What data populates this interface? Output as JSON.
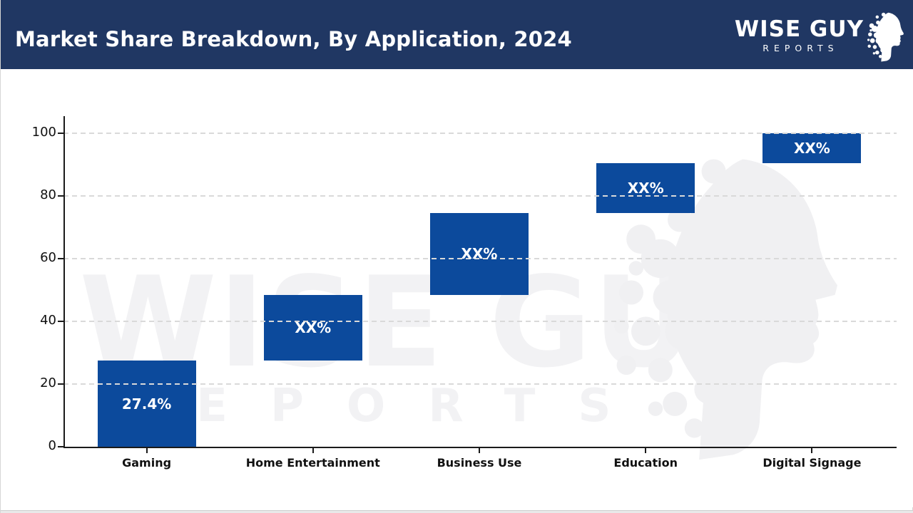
{
  "header": {
    "title": "Market Share Breakdown, By Application, 2024",
    "logo": {
      "line1": "WISE GUY",
      "line2": "REPORTS"
    }
  },
  "watermark": {
    "line1": "WISE GUY",
    "line2": "REPORTS"
  },
  "colors": {
    "header_bg": "#203763",
    "bar": "#0c4a9c",
    "grid": "#d9d9d9",
    "axis": "#1a1a1a",
    "watermark": "#f2f2f4",
    "value_label": "#ffffff"
  },
  "chart_data": {
    "type": "bar",
    "subtype": "waterfall",
    "title": "Market Share Breakdown, By Application, 2024",
    "xlabel": "",
    "ylabel": "",
    "categories": [
      "Gaming",
      "Home Entertainment",
      "Business Use",
      "Education",
      "Digital Signage"
    ],
    "bars": [
      {
        "category": "Gaming",
        "start": 0,
        "end": 27.4,
        "label": "27.4%"
      },
      {
        "category": "Home Entertainment",
        "start": 27.4,
        "end": 48.5,
        "label": "XX%"
      },
      {
        "category": "Business Use",
        "start": 48.5,
        "end": 74.5,
        "label": "XX%"
      },
      {
        "category": "Education",
        "start": 74.5,
        "end": 90.5,
        "label": "XX%"
      },
      {
        "category": "Digital Signage",
        "start": 90.5,
        "end": 100.0,
        "label": "XX%"
      }
    ],
    "yticks": [
      0,
      20,
      40,
      60,
      80,
      100
    ],
    "ylim": [
      0,
      105.5
    ],
    "grid": "horizontal-dashed",
    "legend_position": "none"
  }
}
